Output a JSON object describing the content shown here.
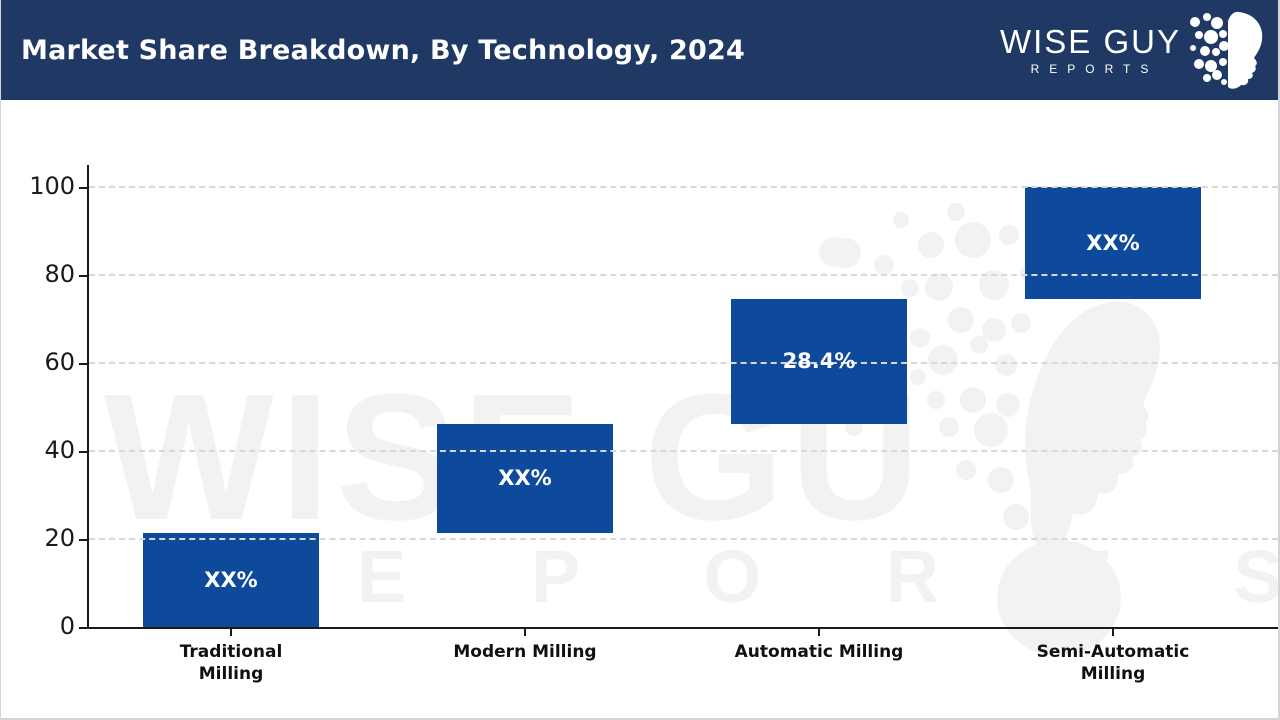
{
  "header": {
    "title": "Market Share Breakdown, By Technology, 2024",
    "logo": {
      "line1": "WISE GUY",
      "line2": "REPORTS"
    }
  },
  "watermark": {
    "line1": "WISE GU",
    "line2": "R E P O R T S"
  },
  "colors": {
    "header_bg": "#1f3864",
    "bar": "#0e4a9c",
    "bar_label_text": "#ffffff",
    "axis": "#1a1a1a",
    "gridline": "#d8d8d8",
    "watermark": "#f2f2f2"
  },
  "chart_data": {
    "type": "bar",
    "subtype": "floating-waterfall",
    "title": "Market Share Breakdown, By Technology, 2024",
    "xlabel": "",
    "ylabel": "",
    "ylim": [
      0,
      105
    ],
    "y_ticks": [
      0,
      20,
      40,
      60,
      80,
      100
    ],
    "grid": "horizontal-dashed",
    "legend": "none",
    "bar_color": "#0e4a9c",
    "categories": [
      "Traditional Milling",
      "Modern Milling",
      "Automatic Milling",
      "Semi-Automatic Milling"
    ],
    "segments": [
      {
        "category": "Traditional Milling",
        "category_display": "Traditional\nMilling",
        "start": 0,
        "end": 21.4,
        "value_label": "XX%"
      },
      {
        "category": "Modern Milling",
        "category_display": "Modern Milling",
        "start": 21.4,
        "end": 46.2,
        "value_label": "XX%"
      },
      {
        "category": "Automatic Milling",
        "category_display": "Automatic Milling",
        "start": 46.2,
        "end": 74.6,
        "value_label": "28.4%"
      },
      {
        "category": "Semi-Automatic Milling",
        "category_display": "Semi-Automatic\nMilling",
        "start": 74.6,
        "end": 100,
        "value_label": "XX%"
      }
    ]
  }
}
